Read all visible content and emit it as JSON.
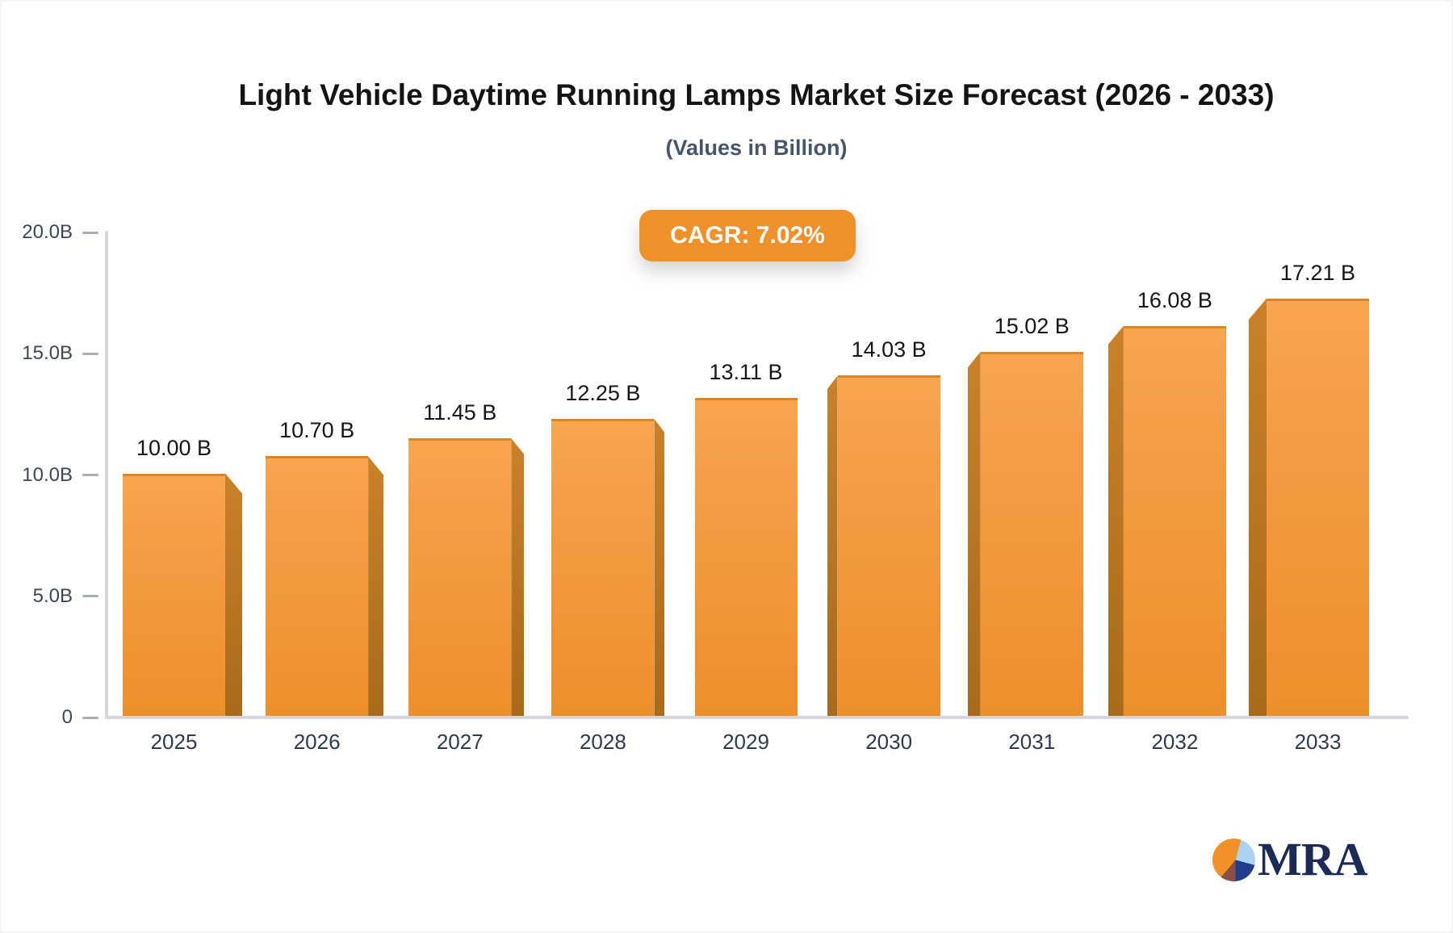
{
  "header": {
    "title": "Light Vehicle Daytime Running Lamps Market Size Forecast (2026 - 2033)",
    "subtitle": "(Values in Billion)",
    "cagr_label": "CAGR: 7.02%"
  },
  "logo": {
    "text": "MRA",
    "pie_icon_colors": [
      "#f29127",
      "#a9d3ef",
      "#1f3e8c",
      "#8a5047"
    ]
  },
  "colors": {
    "bar_face_top": "#f7a64f",
    "bar_face_bottom": "#ef8e2c",
    "bar_side": "#b5701f",
    "badge_bg": "#F0902A",
    "badge_text": "#ffffff",
    "title_text": "#141414",
    "subtitle_text": "#475569",
    "axis_line": "#d3d6dc",
    "y_tick_text": "#3e4656",
    "x_tick_text": "#2e3a4e",
    "logo_navy": "#1c2a56"
  },
  "chart_data": {
    "type": "bar",
    "title": "Light Vehicle Daytime Running Lamps Market Size Forecast (2026 - 2033)",
    "subtitle": "(Values in Billion)",
    "annotation": "CAGR: 7.02%",
    "categories": [
      "2025",
      "2026",
      "2027",
      "2028",
      "2029",
      "2030",
      "2031",
      "2032",
      "2033"
    ],
    "values": [
      10.0,
      10.7,
      11.45,
      12.25,
      13.11,
      14.03,
      15.02,
      16.08,
      17.21
    ],
    "value_labels": [
      "10.00 B",
      "10.70 B",
      "11.45 B",
      "12.25 B",
      "13.11 B",
      "14.03 B",
      "15.02 B",
      "16.08 B",
      "17.21 B"
    ],
    "xlabel": "",
    "ylabel": "",
    "ylim": [
      0,
      20
    ],
    "y_ticks": [
      {
        "value": 20,
        "label": "20.0B"
      },
      {
        "value": 15,
        "label": "15.0B"
      },
      {
        "value": 10,
        "label": "10.0B"
      },
      {
        "value": 5,
        "label": "5.0B"
      },
      {
        "value": 0,
        "label": "0"
      }
    ],
    "grid": false,
    "legend": false,
    "bar_style": "3d-bevel-orange"
  }
}
